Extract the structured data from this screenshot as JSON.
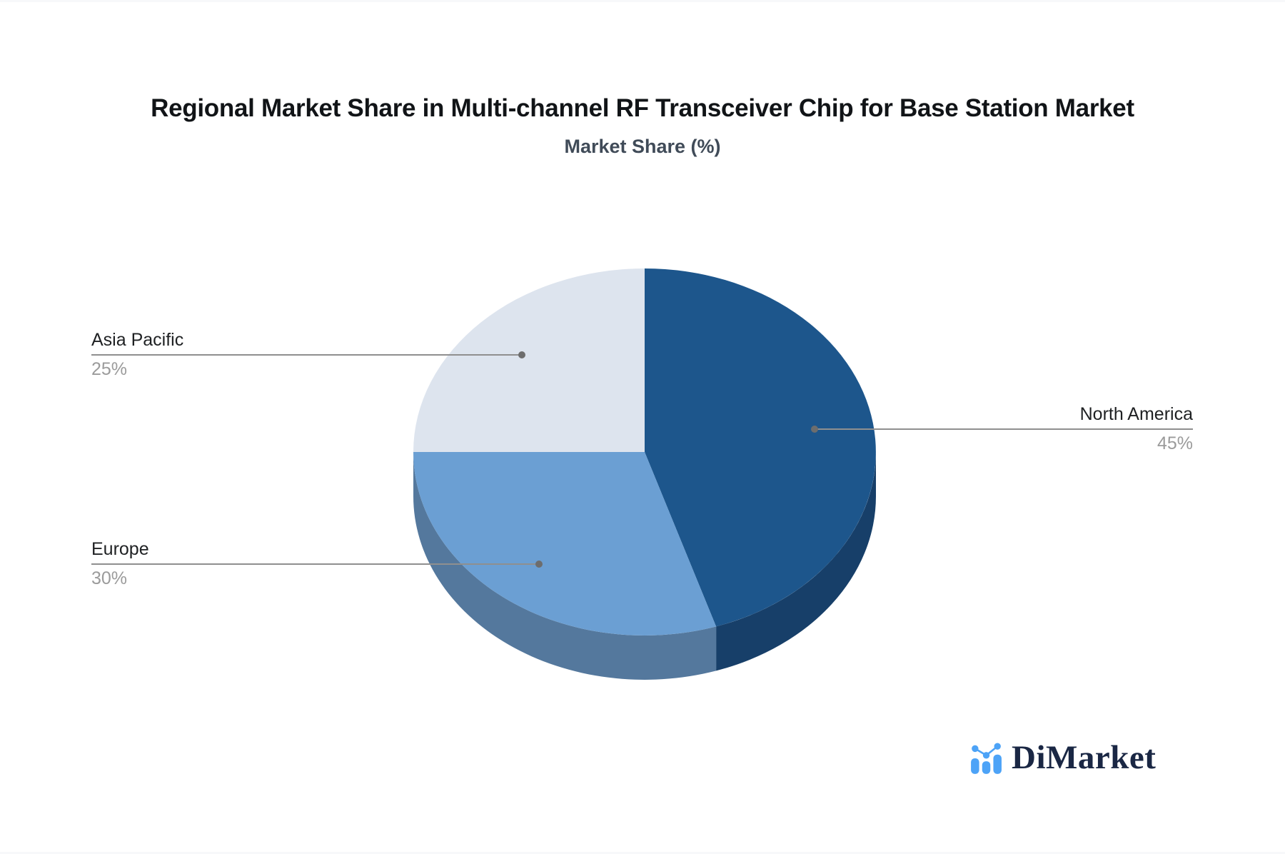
{
  "chart_data": {
    "type": "pie",
    "title": "Regional Market Share in Multi-channel RF Transceiver Chip for Base Station Market",
    "subtitle": "Market Share (%)",
    "unit": "%",
    "effect": "3d",
    "direction": "clockwise",
    "start_angle": "12-o-clock",
    "labels_position": "outside-callout",
    "slices": [
      {
        "label": "North America",
        "value": 45,
        "display": "45%",
        "color": "#1d568c",
        "side_color": "#173f69"
      },
      {
        "label": "Europe",
        "value": 30,
        "display": "30%",
        "color": "#6b9fd3",
        "side_color": "#54789d"
      },
      {
        "label": "Asia Pacific",
        "value": 25,
        "display": "25%",
        "color": "#dde4ee",
        "side_color": "#b9c4d6"
      }
    ],
    "callout_line_color": "#8f8f8f",
    "label_text_color": "#1f2123",
    "value_text_color": "#9b9b9b"
  },
  "branding": {
    "name": "DiMarket",
    "icon": "bar-line-chart-logo",
    "text_color": "#1a2744",
    "accent_color": "#4da3f7"
  }
}
